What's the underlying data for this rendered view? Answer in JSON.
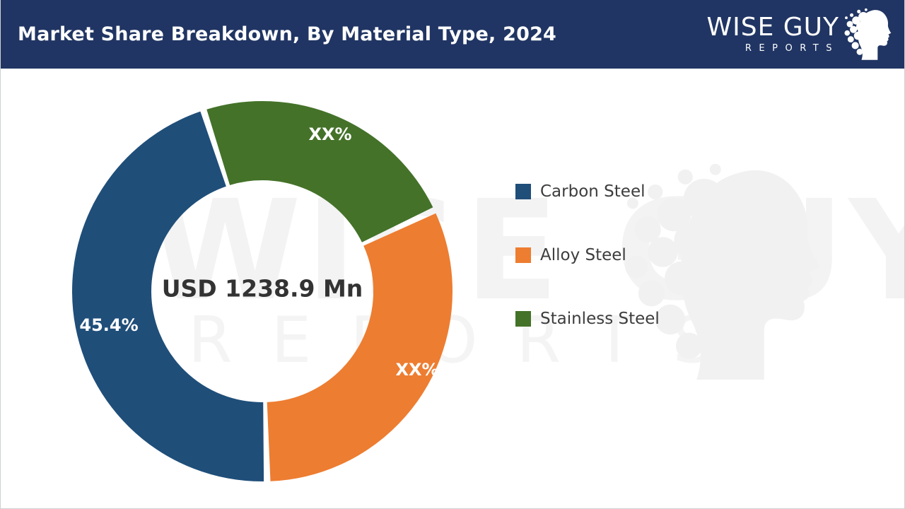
{
  "header": {
    "title": "Market Share Breakdown, By Material Type, 2024",
    "bg_color": "#203563",
    "logo": {
      "name": "WISE GUY",
      "sub": "REPORTS"
    }
  },
  "watermark": {
    "name": "WISE GUY",
    "sub": "REPORTS"
  },
  "chart_data": {
    "type": "pie",
    "subtype": "donut",
    "title": "Market Share Breakdown, By Material Type, 2024",
    "center_label": "USD 1238.9 Mn",
    "legend_position": "right",
    "start_angle_deg": -18,
    "draw_order": [
      2,
      1,
      0
    ],
    "segments": [
      {
        "label": "Carbon Steel",
        "value_label": "45.4%",
        "arc_percent": 45.4,
        "color": "#1f4e79"
      },
      {
        "label": "Alloy Steel",
        "value_label": "XX%",
        "arc_percent": 31.6,
        "color": "#ed7d31"
      },
      {
        "label": "Stainless Steel",
        "value_label": "XX%",
        "arc_percent": 23.0,
        "color": "#447229"
      }
    ]
  }
}
